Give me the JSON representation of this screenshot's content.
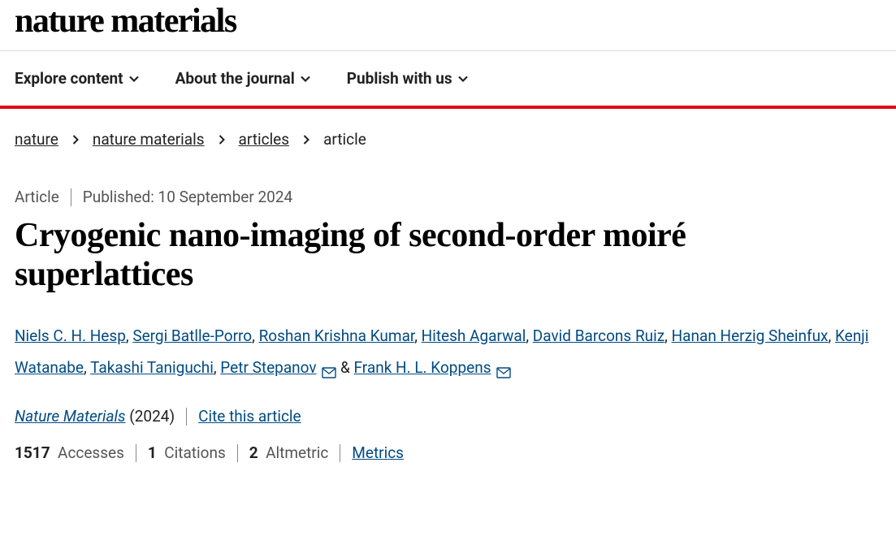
{
  "logo": "nature materials",
  "nav": {
    "items": [
      {
        "label": "Explore content"
      },
      {
        "label": "About the journal"
      },
      {
        "label": "Publish with us"
      }
    ]
  },
  "breadcrumb": {
    "items": [
      {
        "label": "nature",
        "link": true
      },
      {
        "label": "nature materials",
        "link": true
      },
      {
        "label": "articles",
        "link": true
      },
      {
        "label": "article",
        "link": false
      }
    ]
  },
  "article": {
    "type": "Article",
    "published_prefix": "Published: ",
    "published_date": "10 September 2024",
    "title": "Cryogenic nano-imaging of second-order moiré superlattices"
  },
  "authors": [
    {
      "name": "Niels C. H. Hesp",
      "mail": false
    },
    {
      "name": "Sergi Batlle-Porro",
      "mail": false
    },
    {
      "name": "Roshan Krishna Kumar",
      "mail": false
    },
    {
      "name": "Hitesh Agarwal",
      "mail": false
    },
    {
      "name": "David Barcons Ruiz",
      "mail": false
    },
    {
      "name": "Hanan Herzig Sheinfux",
      "mail": false
    },
    {
      "name": "Kenji Watanabe",
      "mail": false
    },
    {
      "name": "Takashi Taniguchi",
      "mail": false
    },
    {
      "name": "Petr Stepanov",
      "mail": true
    },
    {
      "name": "Frank H. L. Koppens",
      "mail": true
    }
  ],
  "journal": {
    "name": "Nature Materials",
    "year": "(2024)",
    "cite_label": "Cite this article"
  },
  "metrics": {
    "accesses": {
      "value": "1517",
      "label": "Accesses"
    },
    "citations": {
      "value": "1",
      "label": "Citations"
    },
    "altmetric": {
      "value": "2",
      "label": "Altmetric"
    },
    "metrics_link": "Metrics"
  },
  "colors": {
    "brand_red": "#e30613",
    "link_blue": "#004b83",
    "text_muted": "#555555"
  }
}
